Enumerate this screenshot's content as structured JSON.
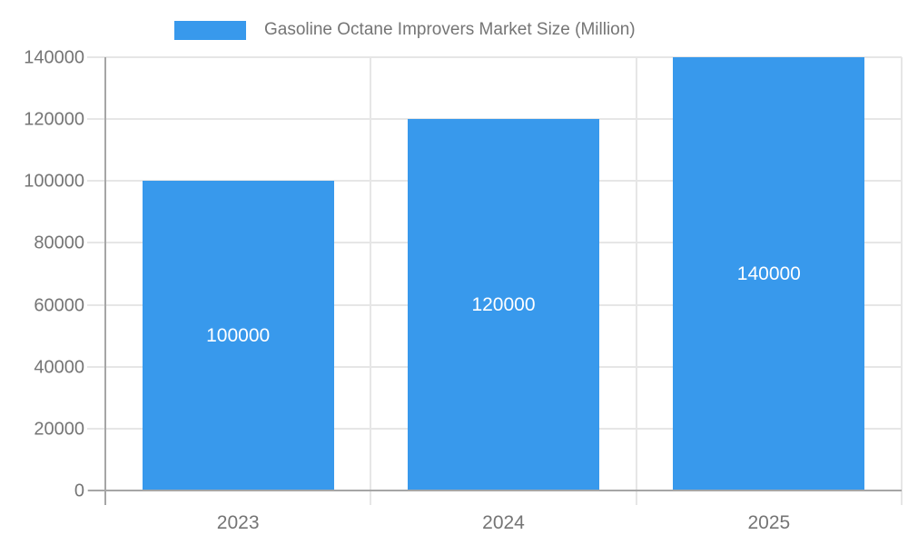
{
  "chart_data": {
    "type": "bar",
    "title": "Gasoline Octane Improvers Market Size (Million)",
    "categories": [
      "2023",
      "2024",
      "2025"
    ],
    "values": [
      100000,
      120000,
      140000
    ],
    "bar_labels": [
      "100000",
      "120000",
      "140000"
    ],
    "xlabel": "",
    "ylabel": "",
    "ylim": [
      0,
      140000
    ],
    "yticks": [
      0,
      20000,
      40000,
      60000,
      80000,
      100000,
      120000,
      140000
    ],
    "ytick_labels": [
      "0",
      "20000",
      "40000",
      "60000",
      "80000",
      "100000",
      "120000",
      "140000"
    ],
    "grid": true,
    "legend_position": "top",
    "colors": {
      "bar": "#3899EC",
      "bar_label": "#FFFFFF",
      "axis_text": "#757575",
      "gridline": "#E6E6E6",
      "axis_line": "#A6A6A6",
      "background": "#FFFFFF"
    }
  }
}
